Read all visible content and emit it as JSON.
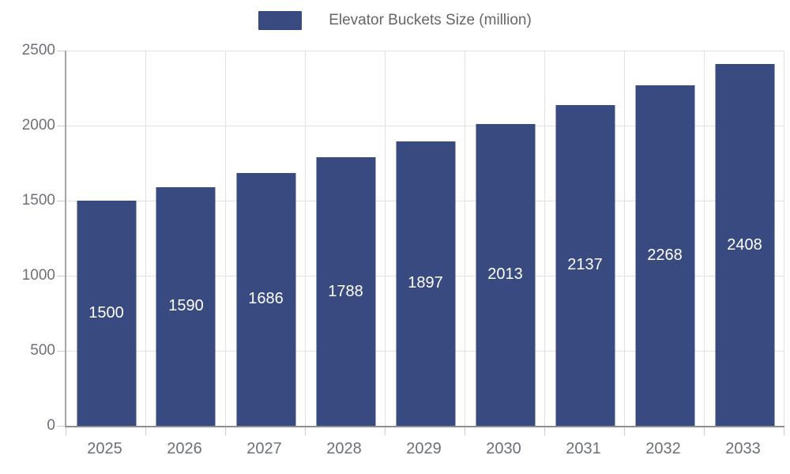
{
  "legend": {
    "label": "Elevator Buckets Size (million)"
  },
  "chart_data": {
    "type": "bar",
    "title": "Elevator Buckets Size (million)",
    "series_name": "Elevator Buckets Size (million)",
    "categories": [
      "2025",
      "2026",
      "2027",
      "2028",
      "2029",
      "2030",
      "2031",
      "2032",
      "2033"
    ],
    "values": [
      1500,
      1590,
      1686,
      1788,
      1897,
      2013,
      2137,
      2268,
      2408
    ],
    "xlabel": "",
    "ylabel": "",
    "ylim": [
      0,
      2500
    ],
    "yticks": [
      0,
      500,
      1000,
      1500,
      2000,
      2500
    ],
    "grid": true,
    "legend_position": "top",
    "bar_color": "#394a81",
    "bar_label_color": "#ffffff",
    "axis_label_color": "#6e7079",
    "gridline_color": "#e2e2e2"
  }
}
